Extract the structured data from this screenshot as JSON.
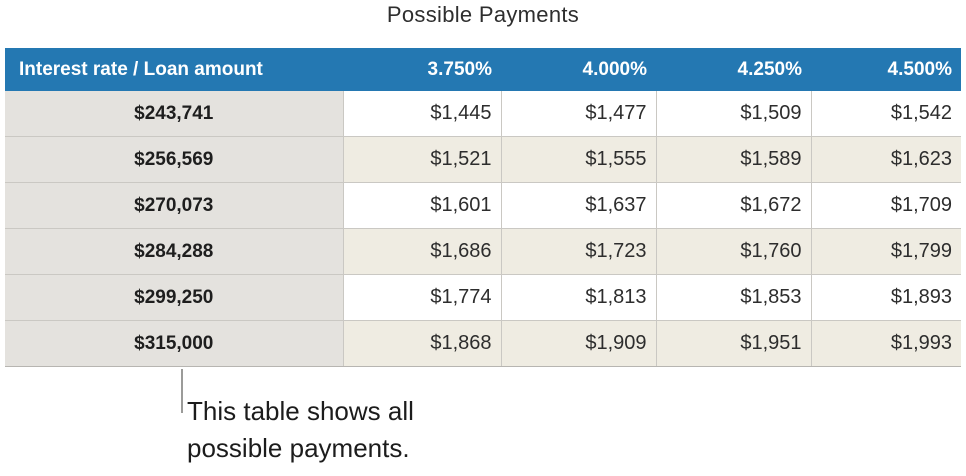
{
  "title": "Possible Payments",
  "chart_data": {
    "type": "table",
    "title": "Possible Payments",
    "columns": [
      "Interest rate / Loan amount",
      "3.750%",
      "4.000%",
      "4.250%",
      "4.500%"
    ],
    "rows": [
      [
        "$243,741",
        "$1,445",
        "$1,477",
        "$1,509",
        "$1,542"
      ],
      [
        "$256,569",
        "$1,521",
        "$1,555",
        "$1,589",
        "$1,623"
      ],
      [
        "$270,073",
        "$1,601",
        "$1,637",
        "$1,672",
        "$1,709"
      ],
      [
        "$284,288",
        "$1,686",
        "$1,723",
        "$1,760",
        "$1,799"
      ],
      [
        "$299,250",
        "$1,774",
        "$1,813",
        "$1,853",
        "$1,893"
      ],
      [
        "$315,000",
        "$1,868",
        "$1,909",
        "$1,951",
        "$1,993"
      ]
    ],
    "layout": {
      "header_alignment": {
        "loan_column": "left",
        "rate_columns": "right"
      },
      "cell_alignment": {
        "loan_column": "center",
        "payment_columns": "right"
      },
      "row_striping": "alternate cream on even data rows"
    }
  },
  "callout": {
    "line1": "This table shows all",
    "line2": "possible payments."
  },
  "colors": {
    "header_background": "#2478b2",
    "header_text": "#ffffff",
    "loan_column_background": "#e4e2de",
    "row_background": "#ffffff",
    "row_alt_background": "#efece2",
    "cell_border": "#cac8c3",
    "table_bottom_border": "#b7b5b1",
    "callout_line": "#9b9b99",
    "body_text": "#2d2d2d"
  }
}
